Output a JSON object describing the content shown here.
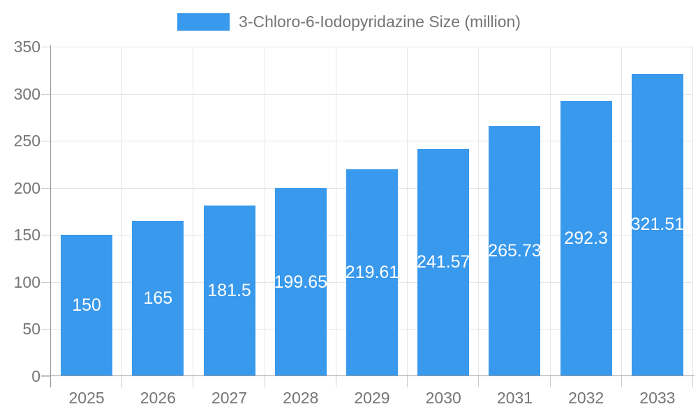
{
  "chart_data": {
    "type": "bar",
    "title": "3-Chloro-6-Iodopyridazine Size (million)",
    "categories": [
      "2025",
      "2026",
      "2027",
      "2028",
      "2029",
      "2030",
      "2031",
      "2032",
      "2033"
    ],
    "values": [
      150,
      165,
      181.5,
      199.65,
      219.61,
      241.57,
      265.73,
      292.3,
      321.51
    ],
    "value_labels": [
      "150",
      "165",
      "181.5",
      "199.65",
      "219.61",
      "241.57",
      "265.73",
      "292.3",
      "321.51"
    ],
    "y_ticks": [
      0,
      50,
      100,
      150,
      200,
      250,
      300,
      350
    ],
    "ylim": [
      0,
      350
    ],
    "xlabel": "",
    "ylabel": "",
    "legend_position": "top-center",
    "grid": true,
    "bar_label_position": "inside-center",
    "colors": {
      "bar": "#3999EC",
      "bar_label": "#FFFFFF",
      "axis_line": "#999999",
      "tick_mark": "#CCCCCC",
      "gridline": "#E6E6E6",
      "text": "#757575",
      "background": "#FFFFFF"
    }
  }
}
